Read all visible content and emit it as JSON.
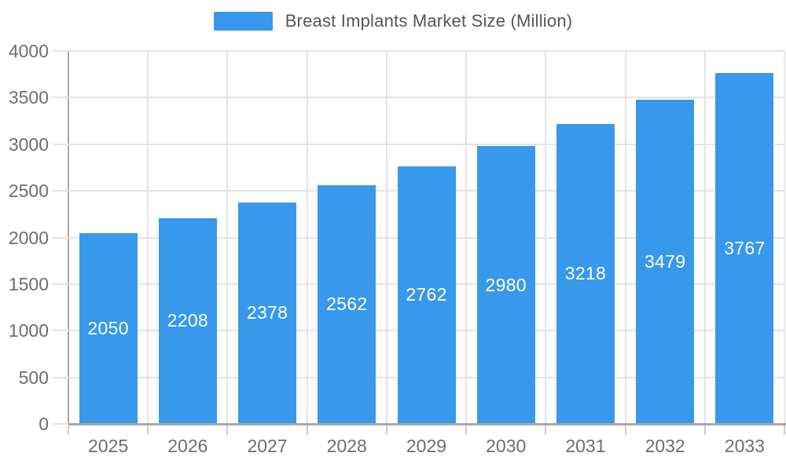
{
  "chart_data": {
    "type": "bar",
    "title": "Breast Implants Market Size (Million)",
    "categories": [
      "2025",
      "2026",
      "2027",
      "2028",
      "2029",
      "2030",
      "2031",
      "2032",
      "2033"
    ],
    "values": [
      2050,
      2208,
      2378,
      2562,
      2762,
      2980,
      3218,
      3479,
      3767
    ],
    "xlabel": "",
    "ylabel": "",
    "ylim": [
      0,
      4000
    ],
    "ytick_step": 500,
    "ytick_labels": [
      "0",
      "500",
      "1000",
      "1500",
      "2000",
      "2500",
      "3000",
      "3500",
      "4000"
    ],
    "grid": true,
    "legend_position": "top-center",
    "bar_label_position": "inside-center"
  },
  "colors": {
    "bar": "#3899EC",
    "bar_label": "#FFFFFF",
    "grid": "#E4E4E4",
    "axis_line": "#A9A9A9",
    "x_tick": "#CCCCCC",
    "y_tick": "#E4E4E4",
    "tick_label": "#6E6E6E",
    "legend_text": "#555555"
  }
}
